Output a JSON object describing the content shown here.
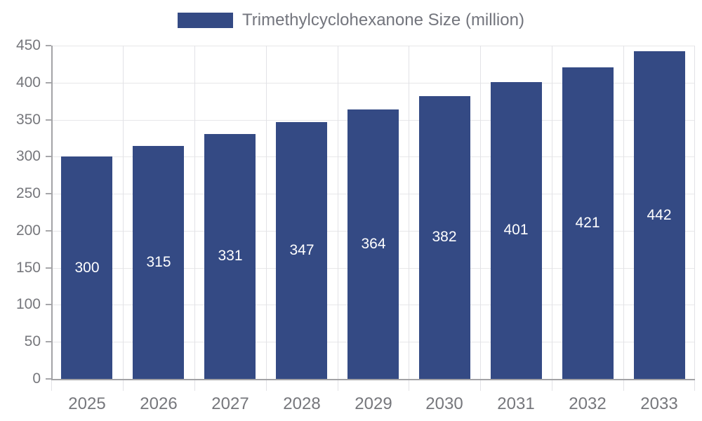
{
  "chart_data": {
    "type": "bar",
    "title": "",
    "series_name": "Trimethylcyclohexanone Size (million)",
    "categories": [
      "2025",
      "2026",
      "2027",
      "2028",
      "2029",
      "2030",
      "2031",
      "2032",
      "2033"
    ],
    "values": [
      300,
      315,
      331,
      347,
      364,
      382,
      401,
      421,
      442
    ],
    "xlabel": "",
    "ylabel": "",
    "ylim": [
      0,
      450
    ],
    "yticks": [
      0,
      50,
      100,
      150,
      200,
      250,
      300,
      350,
      400,
      450
    ],
    "grid": true,
    "legend_position": "top-center",
    "bar_color": "#344a84",
    "value_label_color": "#ffffff",
    "axis_text_color": "#76777c",
    "axis_line_color": "#a3a3a6",
    "grid_color_h": "#e7e7e9",
    "grid_color_v": "#e2e2e6",
    "background_color": "#ffffff"
  },
  "legend": {
    "label": "Trimethylcyclohexanone Size (million)"
  }
}
